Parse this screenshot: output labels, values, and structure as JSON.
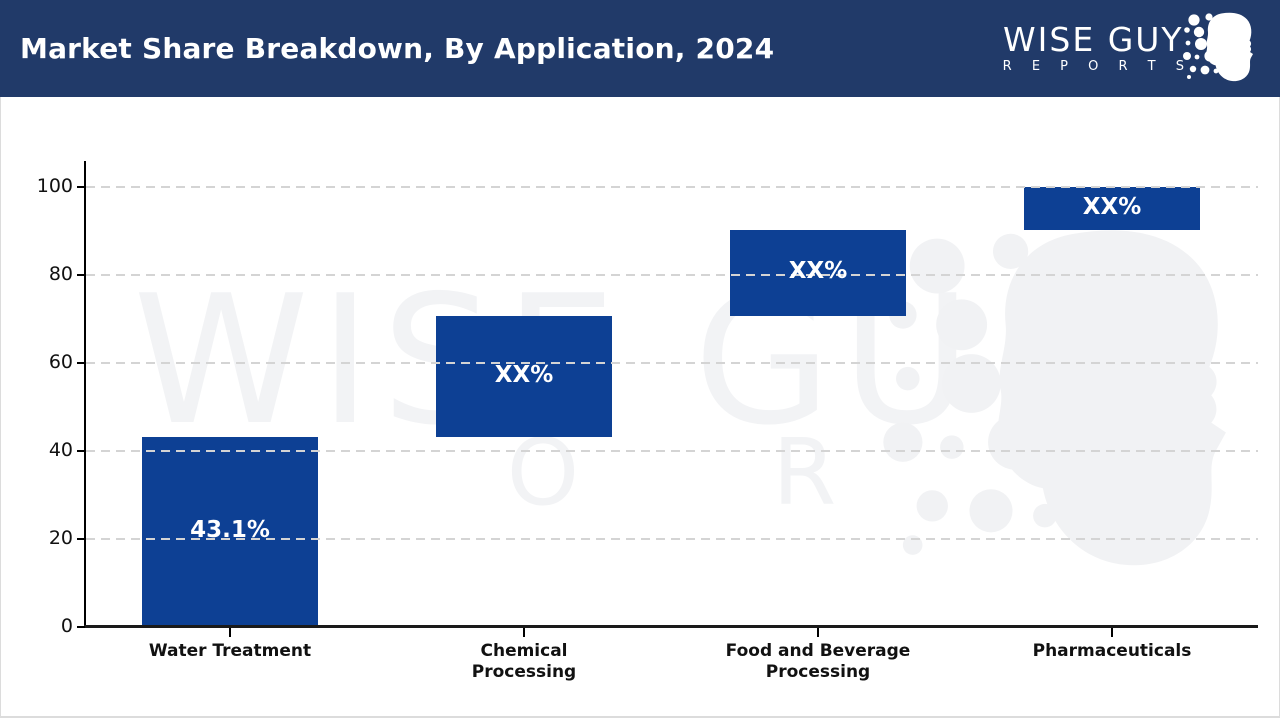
{
  "header": {
    "title": "Market Share Breakdown, By Application, 2024",
    "bg_color": "#213a69",
    "logo": {
      "line1": "WISE GUY",
      "line2": "R E P O R T S"
    }
  },
  "watermark": {
    "line1": "WISE GU",
    "line2": "P O R T S"
  },
  "footer": {
    "hairline_color": "#dcdcdc"
  },
  "chart_data": {
    "type": "bar",
    "subtype": "waterfall",
    "title": "Market Share Breakdown, By Application, 2024",
    "categories": [
      "Water Treatment",
      "Chemical Processing",
      "Food and Beverage Processing",
      "Pharmaceuticals"
    ],
    "category_display": [
      "Water Treatment",
      "Chemical\nProcessing",
      "Food and Beverage\nProcessing",
      "Pharmaceuticals"
    ],
    "series": [
      {
        "name": "Market Share (%)",
        "segments": [
          {
            "category": "Water Treatment",
            "start": 0,
            "end": 43.1,
            "label": "43.1%"
          },
          {
            "category": "Chemical Processing",
            "start": 43.1,
            "end": 70.7,
            "label": "XX%"
          },
          {
            "category": "Food and Beverage Processing",
            "start": 70.7,
            "end": 90.2,
            "label": "XX%"
          },
          {
            "category": "Pharmaceuticals",
            "start": 90.2,
            "end": 100,
            "label": "XX%"
          }
        ]
      }
    ],
    "xlabel": "",
    "ylabel": "",
    "ylim": [
      0,
      105
    ],
    "yticks": [
      0,
      20,
      40,
      60,
      80,
      100
    ],
    "grid": "horizontal-dashed",
    "legend": "none",
    "bar_color": "#0d4094",
    "bar_label_color": "#ffffff",
    "gridline_color": "#d4d4d4",
    "axis_color": "#000000"
  }
}
